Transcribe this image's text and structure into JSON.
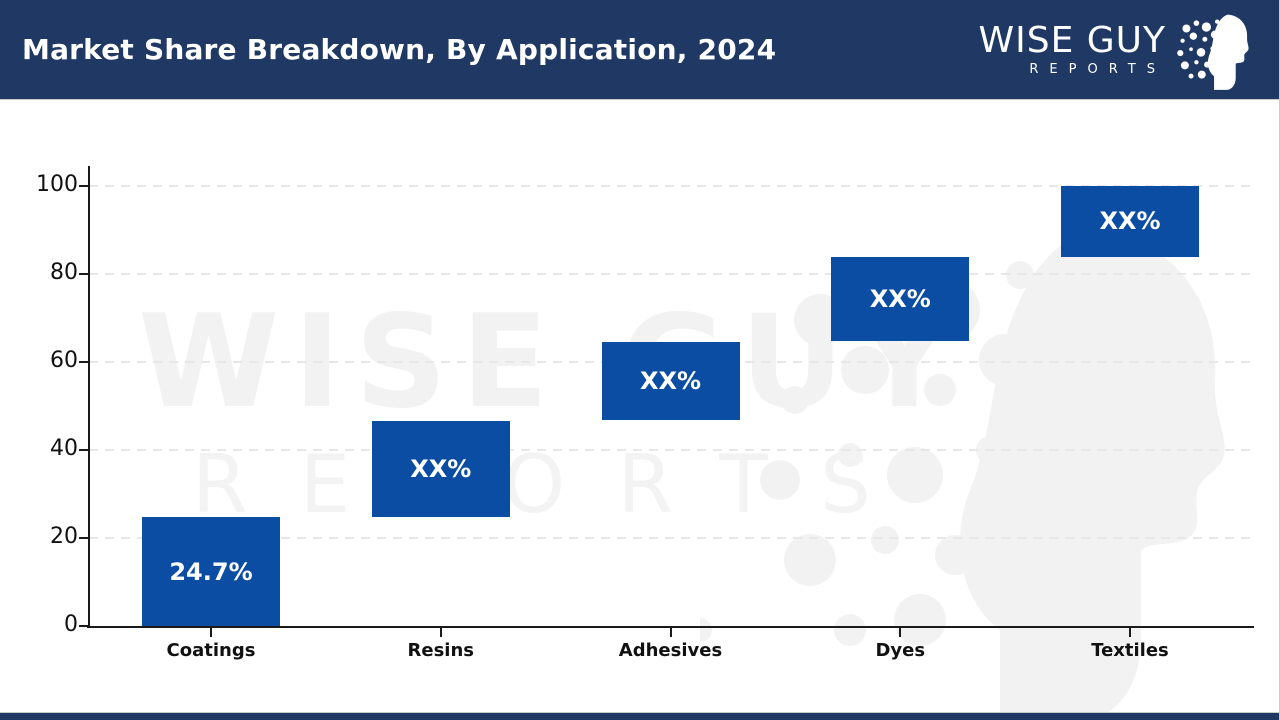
{
  "header": {
    "title": "Market Share Breakdown, By Application, 2024",
    "logo": {
      "line1": "WISE GUY",
      "line2": "REPORTS"
    }
  },
  "watermark": {
    "line1": "WISE GUY",
    "line2": "REPORTS"
  },
  "chart_data": {
    "type": "bar",
    "subtype": "waterfall",
    "title": "Market Share Breakdown, By Application, 2024",
    "categories": [
      "Coatings",
      "Resins",
      "Adhesives",
      "Dyes",
      "Textiles"
    ],
    "series": [
      {
        "name": "Market Share (%)",
        "segments": [
          {
            "start": 0,
            "end": 24.7
          },
          {
            "start": 24.7,
            "end": 46.7
          },
          {
            "start": 46.8,
            "end": 64.5
          },
          {
            "start": 64.8,
            "end": 83.9
          },
          {
            "start": 83.9,
            "end": 100
          }
        ]
      }
    ],
    "bar_labels": [
      "24.7%",
      "XX%",
      "XX%",
      "XX%",
      "XX%"
    ],
    "xlabel": "",
    "ylabel": "",
    "yticks": [
      0,
      20,
      40,
      60,
      80,
      100
    ],
    "ylim": [
      0,
      105
    ],
    "grid": "horizontal-dashed",
    "legend": "none",
    "bar_color": "#0b4da2",
    "bar_label_color": "#ffffff",
    "axis_color": "#1a1a1a",
    "gridline_color": "#e7e7e7"
  },
  "colors": {
    "header_bg": "#1f3864",
    "footer_bg": "#1f3864",
    "background": "#ffffff",
    "watermark": "#f2f2f2"
  }
}
